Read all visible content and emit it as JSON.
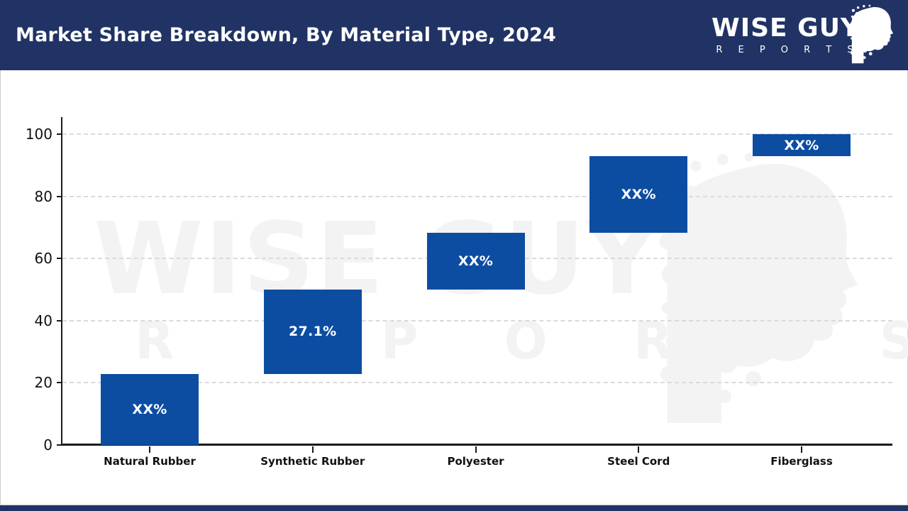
{
  "header": {
    "title": "Market Share Breakdown, By Material Type, 2024",
    "logo": {
      "line1": "WISE GUY",
      "line2": "R E P O R T S"
    }
  },
  "watermark": {
    "line1": "WISE GUY",
    "line2": "R E P O R T S"
  },
  "colors": {
    "header_bg": "#213365",
    "footer_bg": "#213365",
    "bar": "#0c4da2",
    "axis": "#1a1a1a",
    "gridline": "#dadada",
    "watermark": "#f3f3f3",
    "bar_label_text": "#ffffff",
    "title_text": "#ffffff"
  },
  "chart_data": {
    "type": "bar",
    "subtype": "waterfall",
    "title": "Market Share Breakdown, By Material Type, 2024",
    "xlabel": "",
    "ylabel": "",
    "ylim": [
      0,
      105
    ],
    "y_ticks": [
      0,
      20,
      40,
      60,
      80,
      100
    ],
    "grid": "horizontal dashed",
    "legend": "none",
    "categories": [
      "Natural Rubber",
      "Synthetic Rubber",
      "Polyester",
      "Steel Cord",
      "Fiberglass"
    ],
    "segments": [
      {
        "category": "Natural Rubber",
        "start": 0,
        "end": 22.9,
        "value": 22.9,
        "label": "XX%"
      },
      {
        "category": "Synthetic Rubber",
        "start": 22.9,
        "end": 50.0,
        "value": 27.1,
        "label": "27.1%"
      },
      {
        "category": "Polyester",
        "start": 50.0,
        "end": 68.2,
        "value": 18.2,
        "label": "XX%"
      },
      {
        "category": "Steel Cord",
        "start": 68.2,
        "end": 92.9,
        "value": 24.7,
        "label": "XX%"
      },
      {
        "category": "Fiberglass",
        "start": 92.9,
        "end": 100.0,
        "value": 7.1,
        "label": "XX%"
      }
    ]
  }
}
